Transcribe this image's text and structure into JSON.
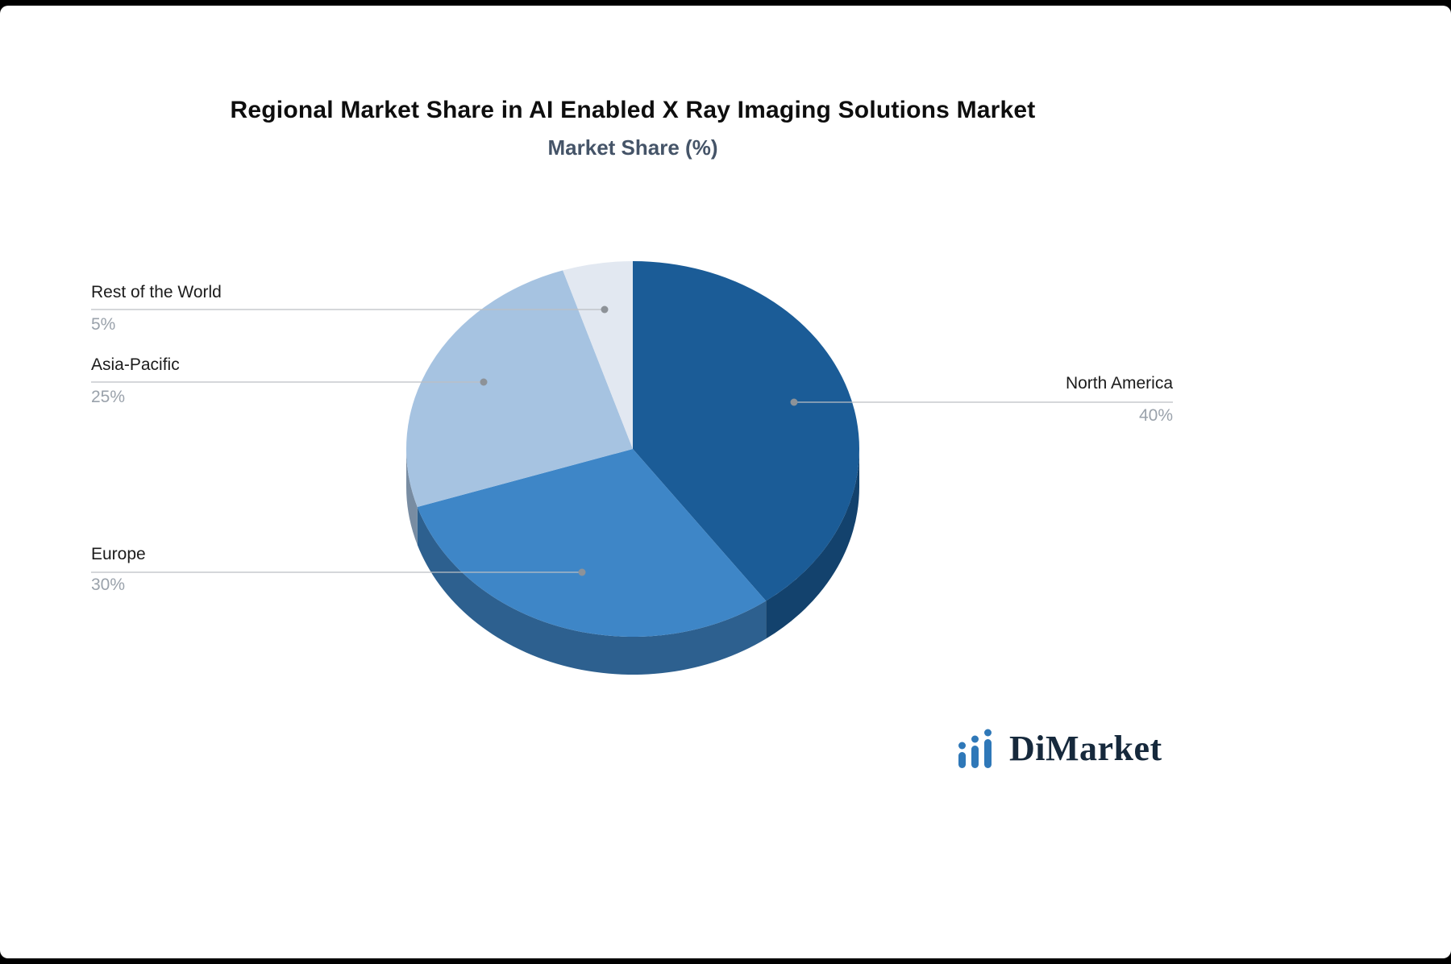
{
  "title": "Regional Market Share in AI Enabled X Ray Imaging Solutions Market",
  "subtitle": "Market Share (%)",
  "callouts": [
    {
      "label": "Rest of the World",
      "value": "5%"
    },
    {
      "label": "Asia-Pacific",
      "value": "25%"
    },
    {
      "label": "Europe",
      "value": "30%"
    },
    {
      "label": "North America",
      "value": "40%"
    }
  ],
  "brand": {
    "name": "DiMarket",
    "icon": "bar-chart-logo-icon",
    "accent_color": "#2f78b8",
    "text_color": "#16293c"
  },
  "chart_data": {
    "type": "pie",
    "title": "Regional Market Share in AI Enabled X Ray Imaging Solutions Market",
    "subtitle": "Market Share (%)",
    "unit": "%",
    "labels": [
      "North America",
      "Europe",
      "Asia-Pacific",
      "Rest of the World"
    ],
    "values": [
      40,
      30,
      25,
      5
    ],
    "colors": [
      "#1b5c97",
      "#3e86c7",
      "#a6c3e1",
      "#e2e8f1"
    ],
    "start_angle_deg": 0,
    "direction": "clockwise",
    "style": "3d",
    "legend_position": "callout-labels"
  }
}
